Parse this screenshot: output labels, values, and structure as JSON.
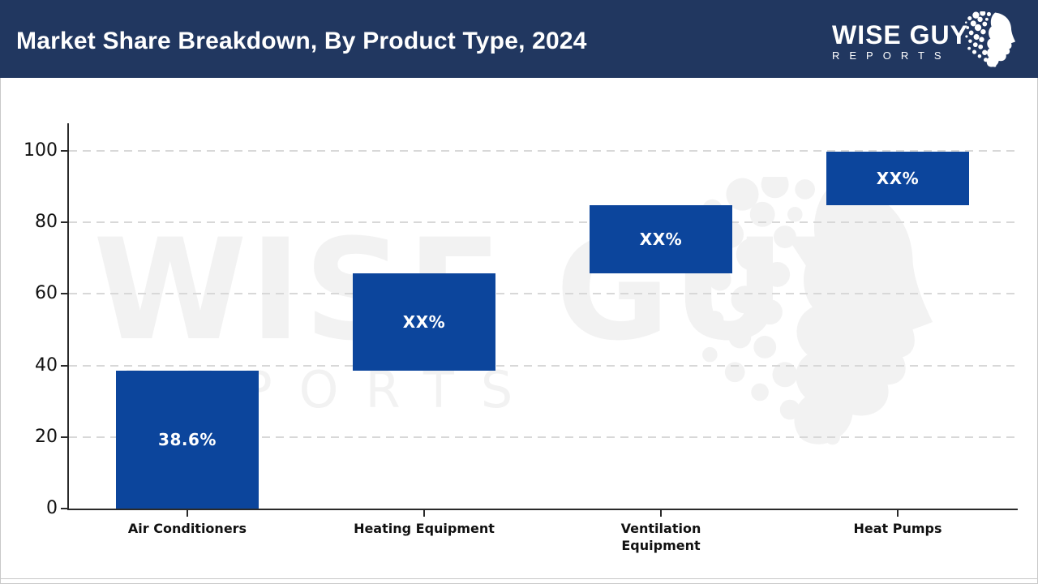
{
  "header": {
    "title": "Market Share Breakdown, By Product Type, 2024",
    "logo": {
      "line1": "WISE GUY",
      "line2": "REPORTS"
    }
  },
  "watermark": {
    "line1": "WISE GUY",
    "line2": "REPORTS"
  },
  "colors": {
    "header_bg": "#213760",
    "bar": "#0c459c",
    "bar_label": "#ffffff",
    "grid": "#d8d8d8",
    "axis": "#2a2a2a",
    "watermark": "#f2f2f2"
  },
  "chart_data": {
    "type": "bar",
    "subtype": "waterfall",
    "title": "Market Share Breakdown, By Product Type, 2024",
    "xlabel": "",
    "ylabel": "",
    "ylim": [
      0,
      100
    ],
    "yticks": [
      0,
      20,
      40,
      60,
      80,
      100
    ],
    "grid": "horizontal-dashed",
    "legend": "none",
    "categories": [
      "Air Conditioners",
      "Heating Equipment",
      "Ventilation\nEquipment",
      "Heat Pumps"
    ],
    "segments": [
      {
        "category": "Air Conditioners",
        "start": 0,
        "end": 38.6,
        "label": "38.6%"
      },
      {
        "category": "Heating Equipment",
        "start": 38.6,
        "end": 65.7,
        "label": "XX%"
      },
      {
        "category": "Ventilation\nEquipment",
        "start": 65.7,
        "end": 84.7,
        "label": "XX%"
      },
      {
        "category": "Heat Pumps",
        "start": 84.7,
        "end": 99.7,
        "label": "XX%"
      }
    ]
  }
}
